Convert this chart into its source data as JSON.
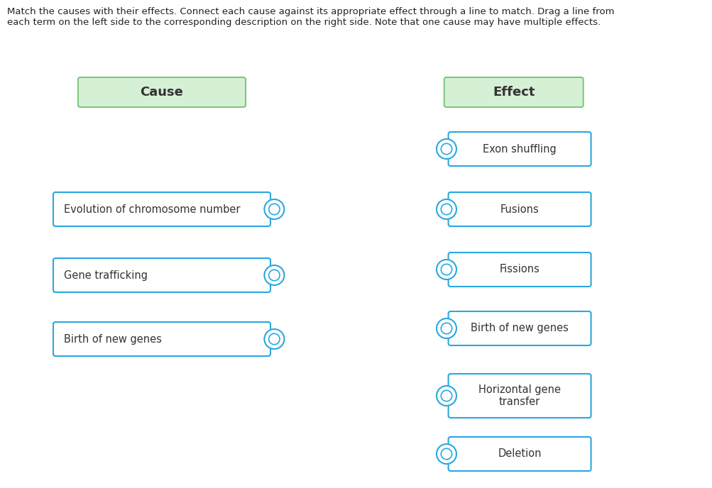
{
  "title_text": "Match the causes with their effects. Connect each cause against its appropriate effect through a line to match. Drag a line from\neach term on the left side to the corresponding description on the right side. Note that one cause may have multiple effects.",
  "cause_header": "Cause",
  "effect_header": "Effect",
  "header_bg": "#d6f0d6",
  "header_border": "#7dc87d",
  "box_border": "#29a8e0",
  "box_bg": "#ffffff",
  "circle_color": "#29a8e0",
  "text_color": "#333333",
  "bg_color": "#ffffff",
  "cause_items": [
    "Evolution of chromosome number",
    "Gene trafficking",
    "Birth of new genes"
  ],
  "effect_items": [
    "Exon shuffling",
    "Fusions",
    "Fissions",
    "Birth of new genes",
    "Horizontal gene\ntransfer",
    "Deletion"
  ],
  "fig_w": 10.04,
  "fig_h": 6.88,
  "dpi": 100
}
